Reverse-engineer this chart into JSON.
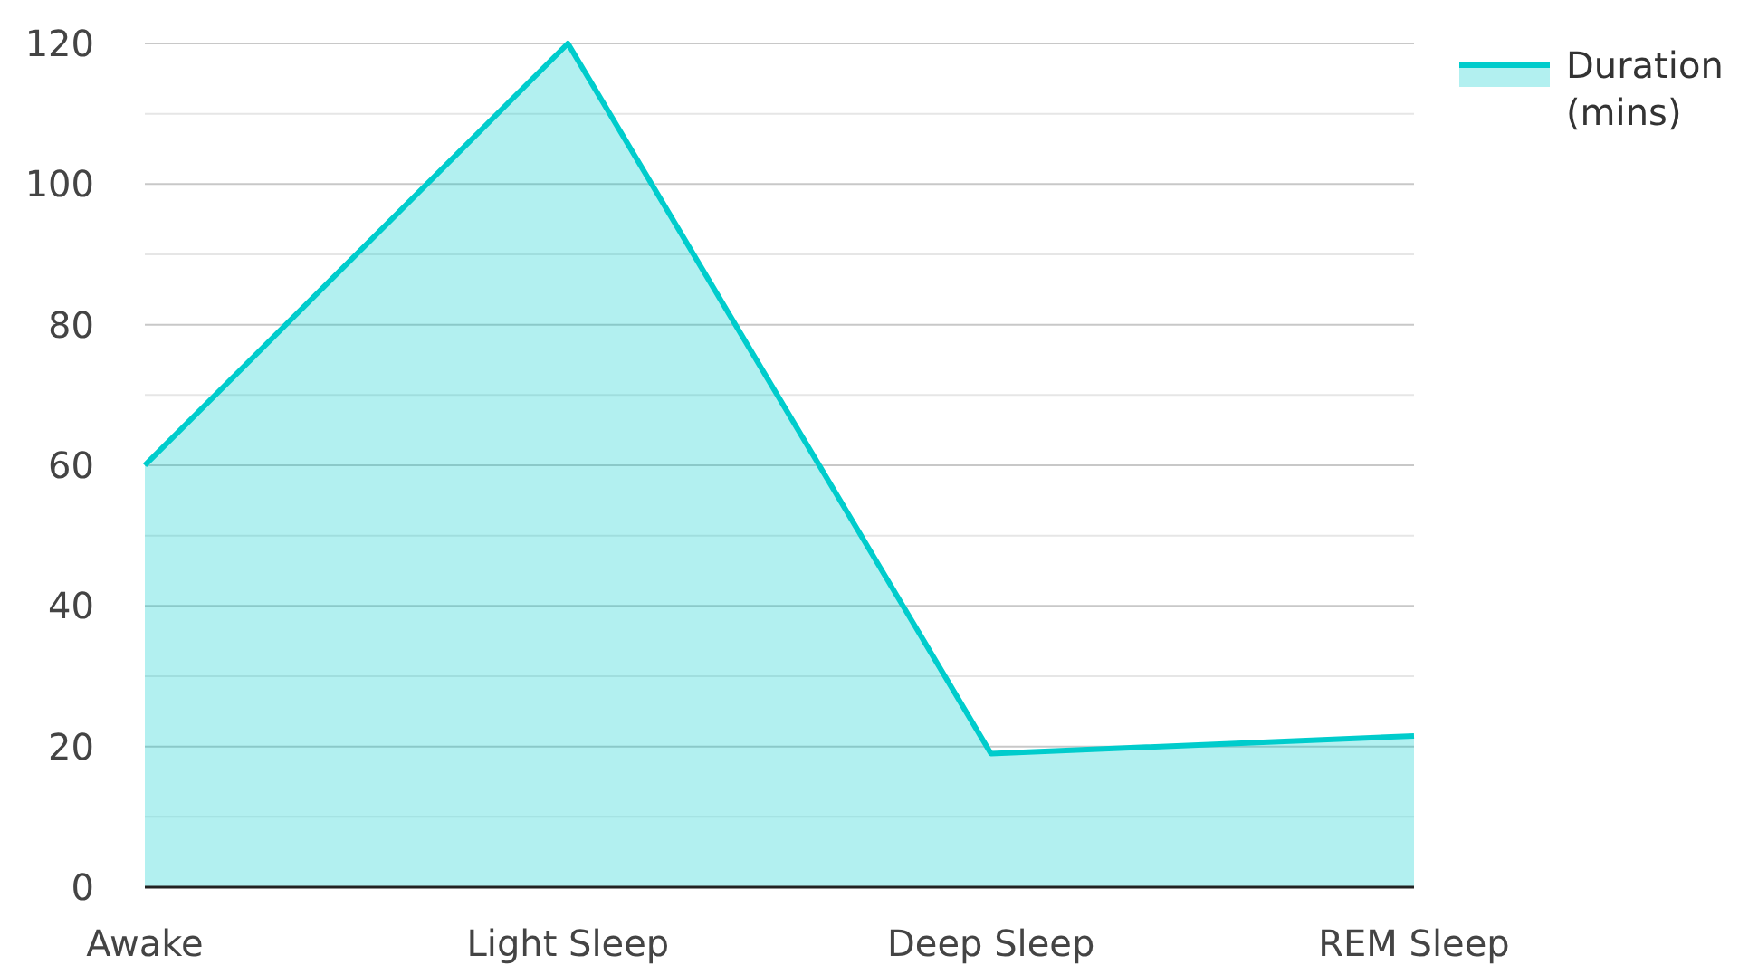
{
  "chart_data": {
    "type": "area",
    "categories": [
      "Awake",
      "Light Sleep",
      "Deep Sleep",
      "REM Sleep"
    ],
    "series": [
      {
        "name": "Duration (mins)",
        "color": "#00cccc",
        "values": [
          60,
          120,
          19,
          21.5
        ]
      }
    ],
    "ylim": [
      0,
      120
    ],
    "yticks": [
      0,
      {
        "value": 10,
        "label": null
      },
      20,
      {
        "value": 30,
        "label": null
      },
      40,
      {
        "value": 50,
        "label": null
      },
      60,
      {
        "value": 70,
        "label": null
      },
      80,
      {
        "value": 90,
        "label": null
      },
      100,
      {
        "value": 110,
        "label": null
      },
      120
    ],
    "grid": "y",
    "legend": "top right",
    "marker": "none"
  }
}
